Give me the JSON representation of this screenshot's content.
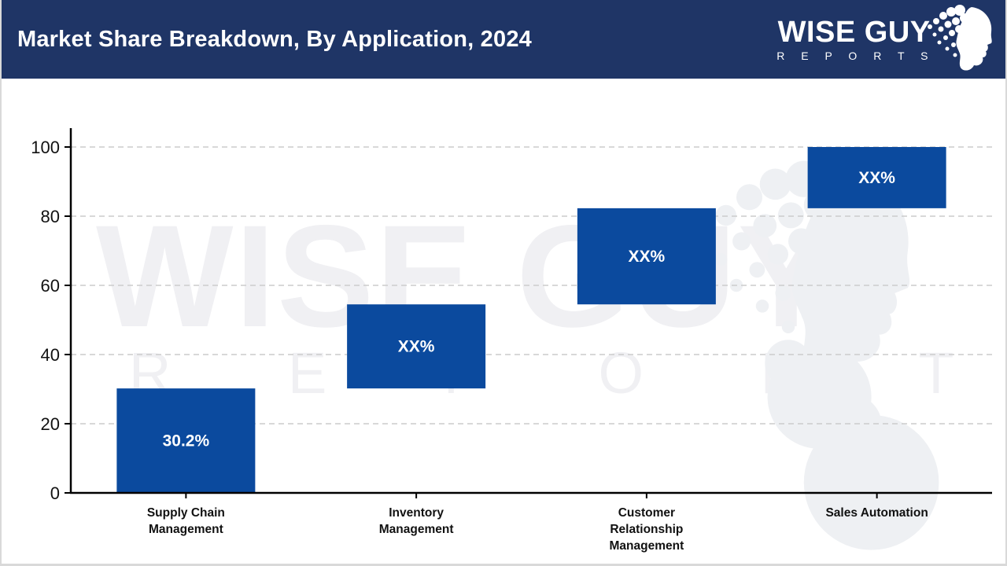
{
  "header": {
    "title": "Market Share Breakdown, By Application, 2024",
    "bg_color": "#1f3566",
    "logo": {
      "line1": "WISE GUY",
      "line2": "R E P O R T S"
    }
  },
  "watermark": {
    "line1": "WISE GUY",
    "line2": "R E P O R T S"
  },
  "chart_data": {
    "type": "bar",
    "subtype": "waterfall",
    "title": "Market Share Breakdown, By Application, 2024",
    "xlabel": "",
    "ylabel": "",
    "categories": [
      "Supply Chain Management",
      "Inventory Management",
      "Customer Relationship Management",
      "Sales Automation"
    ],
    "category_lines": [
      [
        "Supply Chain",
        "Management"
      ],
      [
        "Inventory",
        "Management"
      ],
      [
        "Customer",
        "Relationship",
        "Management"
      ],
      [
        "Sales Automation"
      ]
    ],
    "segments": [
      {
        "category": "Supply Chain Management",
        "start": 0,
        "end": 30.2,
        "label": "30.2%"
      },
      {
        "category": "Inventory Management",
        "start": 30.2,
        "end": 54.5,
        "label": "XX%"
      },
      {
        "category": "Customer Relationship Management",
        "start": 54.5,
        "end": 82.3,
        "label": "XX%"
      },
      {
        "category": "Sales Automation",
        "start": 82.3,
        "end": 100,
        "label": "XX%"
      }
    ],
    "yticks": [
      0,
      20,
      40,
      60,
      80,
      100
    ],
    "ylim": [
      0,
      100
    ],
    "grid": "dashed-horizontal",
    "legend": "none",
    "bar_color": "#0b4a9e",
    "bar_label_color": "#ffffff",
    "grid_color": "#cccccc",
    "axis_color": "#000000",
    "tick_label_color": "#111111"
  }
}
